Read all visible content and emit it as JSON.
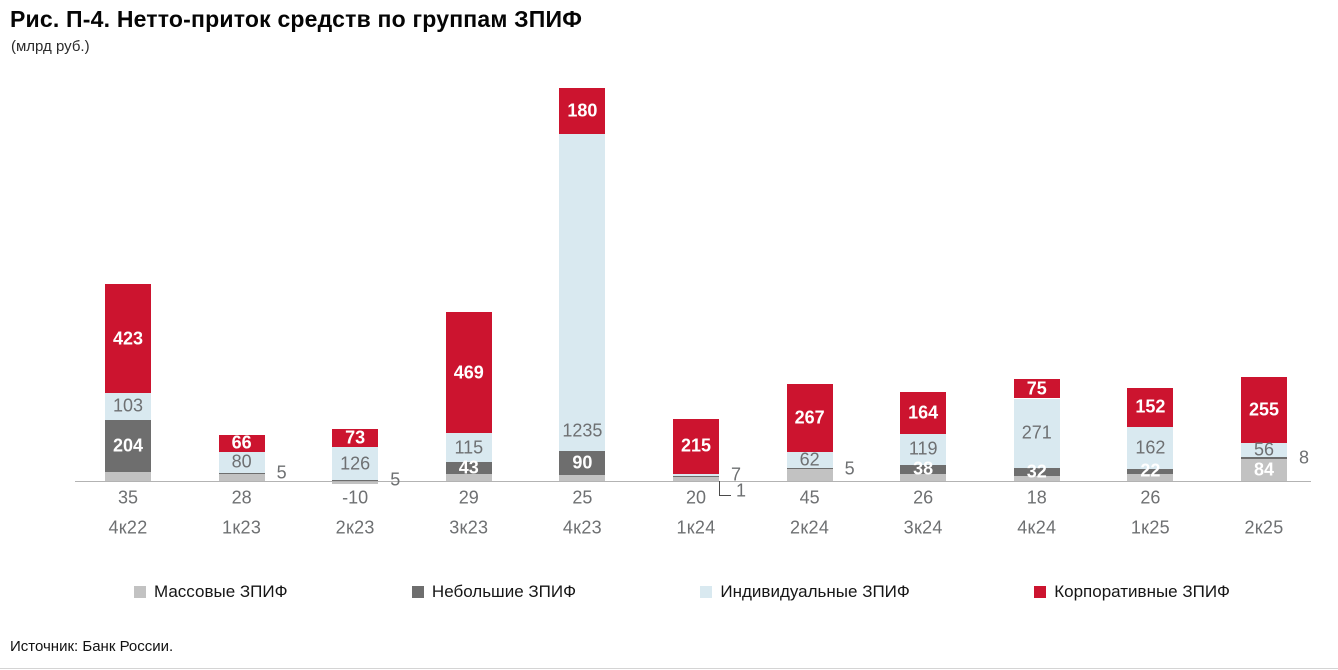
{
  "title": "Рис. П-4. Нетто-приток средств по группам ЗПИФ",
  "subtitle": "(млрд руб.)",
  "source": "Источник: Банк России.",
  "chart_data": {
    "type": "bar",
    "stacked": true,
    "unit": "млрд руб.",
    "title": "Рис. П-4. Нетто-приток средств по группам ЗПИФ",
    "xlabel": "",
    "ylabel": "млрд руб.",
    "grid": false,
    "legend_position": "bottom",
    "categories": [
      "4к22",
      "1к23",
      "2к23",
      "3к23",
      "4к23",
      "1к24",
      "2к24",
      "3к24",
      "4к24",
      "1к25",
      "2к25"
    ],
    "series": [
      {
        "name": "Массовые ЗПИФ",
        "color": "#c2c2c2",
        "values": [
          35,
          28,
          -10,
          29,
          25,
          20,
          45,
          26,
          18,
          26,
          84
        ]
      },
      {
        "name": "Небольшие ЗПИФ",
        "color": "#6e6e6e",
        "values": [
          204,
          5,
          5,
          43,
          90,
          1,
          5,
          38,
          32,
          22,
          8
        ]
      },
      {
        "name": "Индивидуальные ЗПИФ",
        "color": "#d9e9f0",
        "values": [
          103,
          80,
          126,
          115,
          1235,
          7,
          62,
          119,
          271,
          162,
          56
        ]
      },
      {
        "name": "Корпоративные ЗПИФ",
        "color": "#cc142f",
        "values": [
          423,
          66,
          73,
          469,
          180,
          215,
          267,
          164,
          75,
          152,
          255
        ]
      }
    ],
    "axis_range_hint": {
      "y_top": 1530,
      "y_bottom": -10
    }
  },
  "colors": {
    "axis": "#b3b3b3",
    "label_gray": "#6e7072",
    "label_white": "#ffffff"
  }
}
